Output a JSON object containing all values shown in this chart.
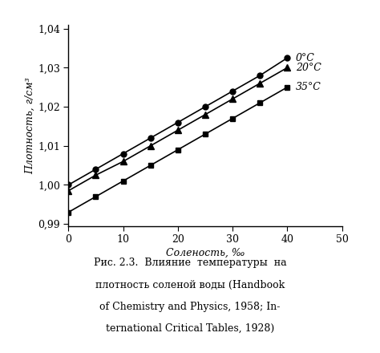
{
  "series": [
    {
      "label": "0°C",
      "x": [
        0,
        5,
        10,
        15,
        20,
        25,
        30,
        35,
        40
      ],
      "y": [
        1.0,
        1.004,
        1.008,
        1.012,
        1.016,
        1.02,
        1.024,
        1.028,
        1.0325
      ],
      "marker": "o",
      "markersize": 5,
      "markerfacecolor": "black"
    },
    {
      "label": "20°C",
      "x": [
        0,
        5,
        10,
        15,
        20,
        25,
        30,
        35,
        40
      ],
      "y": [
        0.9985,
        1.0025,
        1.006,
        1.01,
        1.014,
        1.018,
        1.022,
        1.026,
        1.03
      ],
      "marker": "^",
      "markersize": 6,
      "markerfacecolor": "black"
    },
    {
      "label": "35°C",
      "x": [
        0,
        5,
        10,
        15,
        20,
        25,
        30,
        35,
        40
      ],
      "y": [
        0.993,
        0.997,
        1.001,
        1.005,
        1.009,
        1.013,
        1.017,
        1.021,
        1.025
      ],
      "marker": "s",
      "markersize": 5,
      "markerfacecolor": "black"
    }
  ],
  "xlabel": "Соленость, ‰",
  "ylabel": "Плотность, г/см³",
  "xlim": [
    0,
    50
  ],
  "ylim": [
    0.9895,
    1.041
  ],
  "xticks": [
    0,
    10,
    20,
    30,
    40,
    50
  ],
  "yticks": [
    0.99,
    1.0,
    1.01,
    1.02,
    1.03,
    1.04
  ],
  "ytick_labels": [
    "0,99",
    "1,00",
    "1,01",
    "1,02",
    "1,03",
    "1,04"
  ],
  "line_color": "black",
  "bg_color": "white",
  "caption_line1": "Рис. 2.3.  Влияние  температуры  на",
  "caption_line2": "плотность соленой воды (Handbook",
  "caption_line3": "of Chemistry and Physics, 1958; In-",
  "caption_line4": "ternational Critical Tables, 1928)"
}
